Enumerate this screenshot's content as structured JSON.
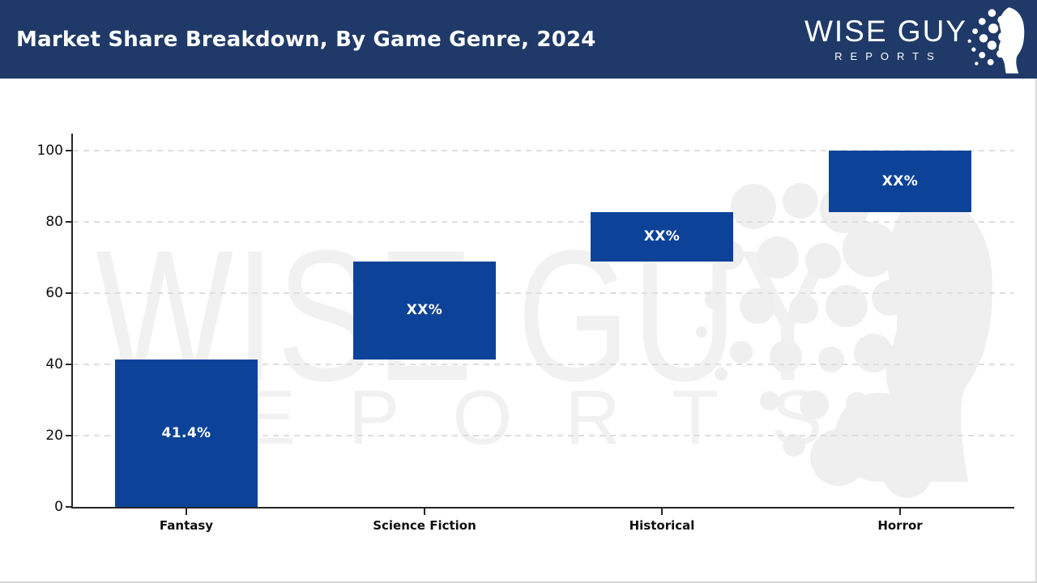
{
  "header": {
    "title": "Market Share Breakdown, By Game Genre, 2024",
    "logo": {
      "wordmark": "WISE GUY",
      "subtext": "REPORTS"
    }
  },
  "watermark": {
    "line1": "WISE GUY",
    "line2": "REPORTS"
  },
  "chart_data": {
    "type": "bar",
    "subtype": "waterfall",
    "title": "Market Share Breakdown, By Game Genre, 2024",
    "categories": [
      "Fantasy",
      "Science Fiction",
      "Historical",
      "Horror"
    ],
    "segments": [
      {
        "category": "Fantasy",
        "start": 0,
        "end": 41.4,
        "label": "41.4%"
      },
      {
        "category": "Science Fiction",
        "start": 41.4,
        "end": 68.9,
        "label": "XX%"
      },
      {
        "category": "Historical",
        "start": 68.9,
        "end": 82.7,
        "label": "XX%"
      },
      {
        "category": "Horror",
        "start": 82.7,
        "end": 100,
        "label": "XX%"
      }
    ],
    "ylim": [
      0,
      100
    ],
    "yticks": [
      0,
      20,
      40,
      60,
      80,
      100
    ],
    "xlabel": "",
    "ylabel": "",
    "grid": "horizontal-dashed",
    "legend": "none",
    "bar_color": "#0c4398",
    "bar_label_color": "#ffffff",
    "axis_color": "#262626"
  },
  "colors": {
    "header_bg": "#1f3a68",
    "bar": "#0c4398",
    "grid": "#dedede",
    "watermark": "#f1f1f1",
    "text": "#0f0f0f"
  }
}
